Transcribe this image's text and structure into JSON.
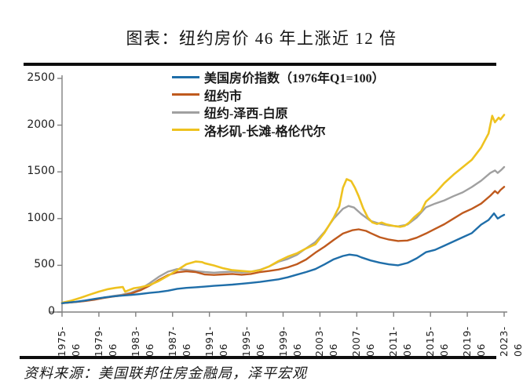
{
  "header": {
    "title": "图表：纽约房价 46 年上涨近 12 倍"
  },
  "source": {
    "text": "资料来源：美国联邦住房金融局，泽平宏观"
  },
  "style": {
    "axis_color": "#808080",
    "tick_label_color": "#1f1f1f",
    "divider_color": "#0d0d0d",
    "background": "#ffffff"
  },
  "chart_data": {
    "type": "line",
    "title": "图表：纽约房价 46 年上涨近 12 倍",
    "legend_position": "top-center",
    "grid": false,
    "xlabel": "",
    "ylabel": "",
    "x_axis": {
      "ticks": [
        {
          "label": "1975-06",
          "year": 1975.5
        },
        {
          "label": "1979-06",
          "year": 1979.5
        },
        {
          "label": "1983-06",
          "year": 1983.5
        },
        {
          "label": "1987-06",
          "year": 1987.5
        },
        {
          "label": "1991-06",
          "year": 1991.5
        },
        {
          "label": "1995-06",
          "year": 1995.5
        },
        {
          "label": "1999-06",
          "year": 1999.5
        },
        {
          "label": "2003-06",
          "year": 2003.5
        },
        {
          "label": "2007-06",
          "year": 2007.5
        },
        {
          "label": "2011-06",
          "year": 2011.5
        },
        {
          "label": "2015-06",
          "year": 2015.5
        },
        {
          "label": "2019-06",
          "year": 2019.5
        },
        {
          "label": "2023-06",
          "year": 2023.5
        }
      ],
      "range": [
        1975.5,
        2023.5
      ]
    },
    "y_axis": {
      "ticks": [
        0,
        500,
        1000,
        1500,
        2000,
        2500
      ],
      "range": [
        0,
        2500
      ]
    },
    "series": [
      {
        "name": "美国房价指数（1976年Q1=100）",
        "color": "#1f6ea9",
        "width": 2.4,
        "points": [
          [
            1975.5,
            95
          ],
          [
            1977,
            110
          ],
          [
            1978,
            123
          ],
          [
            1979,
            140
          ],
          [
            1980,
            155
          ],
          [
            1981,
            167
          ],
          [
            1982,
            175
          ],
          [
            1983,
            183
          ],
          [
            1984,
            193
          ],
          [
            1985,
            205
          ],
          [
            1986,
            215
          ],
          [
            1987,
            228
          ],
          [
            1988,
            248
          ],
          [
            1989,
            258
          ],
          [
            1990,
            265
          ],
          [
            1991,
            272
          ],
          [
            1992,
            280
          ],
          [
            1993,
            287
          ],
          [
            1994,
            294
          ],
          [
            1995,
            303
          ],
          [
            1996,
            312
          ],
          [
            1997,
            322
          ],
          [
            1998,
            336
          ],
          [
            1999,
            350
          ],
          [
            2000,
            372
          ],
          [
            2001,
            400
          ],
          [
            2002,
            428
          ],
          [
            2003,
            460
          ],
          [
            2004,
            510
          ],
          [
            2005,
            565
          ],
          [
            2006,
            600
          ],
          [
            2006.7,
            615
          ],
          [
            2007.5,
            605
          ],
          [
            2008,
            585
          ],
          [
            2009,
            552
          ],
          [
            2010,
            528
          ],
          [
            2011,
            510
          ],
          [
            2012,
            500
          ],
          [
            2013,
            525
          ],
          [
            2014,
            575
          ],
          [
            2015,
            640
          ],
          [
            2016,
            665
          ],
          [
            2017,
            710
          ],
          [
            2018,
            755
          ],
          [
            2019,
            800
          ],
          [
            2020,
            845
          ],
          [
            2021,
            935
          ],
          [
            2021.8,
            985
          ],
          [
            2022.4,
            1055
          ],
          [
            2022.8,
            1000
          ],
          [
            2023.2,
            1025
          ],
          [
            2023.5,
            1040
          ]
        ]
      },
      {
        "name": "纽约市",
        "color": "#bf5a1e",
        "width": 2.4,
        "points": [
          [
            1975.5,
            95
          ],
          [
            1977,
            107
          ],
          [
            1978,
            118
          ],
          [
            1979,
            132
          ],
          [
            1980,
            150
          ],
          [
            1981,
            165
          ],
          [
            1982,
            178
          ],
          [
            1983,
            198
          ],
          [
            1984,
            232
          ],
          [
            1985,
            282
          ],
          [
            1986,
            342
          ],
          [
            1987,
            395
          ],
          [
            1988,
            425
          ],
          [
            1989,
            435
          ],
          [
            1990,
            428
          ],
          [
            1991,
            402
          ],
          [
            1992,
            397
          ],
          [
            1993,
            403
          ],
          [
            1994,
            408
          ],
          [
            1995,
            399
          ],
          [
            1996,
            408
          ],
          [
            1997,
            428
          ],
          [
            1998,
            440
          ],
          [
            1999,
            455
          ],
          [
            2000,
            478
          ],
          [
            2001,
            512
          ],
          [
            2002,
            562
          ],
          [
            2003,
            635
          ],
          [
            2004,
            700
          ],
          [
            2005,
            772
          ],
          [
            2006,
            840
          ],
          [
            2007,
            875
          ],
          [
            2007.7,
            885
          ],
          [
            2008.5,
            868
          ],
          [
            2009,
            845
          ],
          [
            2010,
            800
          ],
          [
            2011,
            775
          ],
          [
            2012,
            760
          ],
          [
            2013,
            765
          ],
          [
            2014,
            795
          ],
          [
            2015,
            840
          ],
          [
            2016,
            890
          ],
          [
            2017,
            940
          ],
          [
            2018,
            1000
          ],
          [
            2019,
            1060
          ],
          [
            2020,
            1105
          ],
          [
            2021,
            1160
          ],
          [
            2022,
            1245
          ],
          [
            2022.5,
            1295
          ],
          [
            2022.8,
            1270
          ],
          [
            2023.1,
            1305
          ],
          [
            2023.5,
            1340
          ]
        ]
      },
      {
        "name": "纽约-泽西-白原",
        "color": "#a0a0a0",
        "width": 2.4,
        "points": [
          [
            1975.5,
            95
          ],
          [
            1977,
            108
          ],
          [
            1978,
            120
          ],
          [
            1979,
            135
          ],
          [
            1980,
            152
          ],
          [
            1981,
            170
          ],
          [
            1982,
            185
          ],
          [
            1983,
            207
          ],
          [
            1984,
            247
          ],
          [
            1985,
            307
          ],
          [
            1986,
            377
          ],
          [
            1987,
            432
          ],
          [
            1988,
            460
          ],
          [
            1989,
            452
          ],
          [
            1990,
            438
          ],
          [
            1991,
            428
          ],
          [
            1992,
            421
          ],
          [
            1993,
            428
          ],
          [
            1994,
            433
          ],
          [
            1995,
            424
          ],
          [
            1996,
            432
          ],
          [
            1997,
            452
          ],
          [
            1998,
            488
          ],
          [
            1999,
            538
          ],
          [
            2000,
            568
          ],
          [
            2001,
            612
          ],
          [
            2002,
            682
          ],
          [
            2003,
            748
          ],
          [
            2004,
            858
          ],
          [
            2005,
            1000
          ],
          [
            2006,
            1105
          ],
          [
            2006.6,
            1135
          ],
          [
            2007.2,
            1118
          ],
          [
            2008,
            1048
          ],
          [
            2009,
            975
          ],
          [
            2010,
            945
          ],
          [
            2011,
            925
          ],
          [
            2012,
            917
          ],
          [
            2013,
            935
          ],
          [
            2014,
            1010
          ],
          [
            2015,
            1120
          ],
          [
            2016,
            1160
          ],
          [
            2017,
            1195
          ],
          [
            2018,
            1240
          ],
          [
            2019,
            1280
          ],
          [
            2020,
            1338
          ],
          [
            2021,
            1405
          ],
          [
            2022,
            1488
          ],
          [
            2022.5,
            1515
          ],
          [
            2022.8,
            1488
          ],
          [
            2023.2,
            1522
          ],
          [
            2023.5,
            1552
          ]
        ]
      },
      {
        "name": "洛杉矶-长滩-格伦代尔",
        "color": "#eec21f",
        "width": 2.6,
        "points": [
          [
            1975.5,
            100
          ],
          [
            1976.5,
            122
          ],
          [
            1977.5,
            152
          ],
          [
            1978.5,
            186
          ],
          [
            1979.5,
            218
          ],
          [
            1980.5,
            245
          ],
          [
            1981.3,
            258
          ],
          [
            1982.1,
            268
          ],
          [
            1982.35,
            218
          ],
          [
            1982.7,
            232
          ],
          [
            1983.3,
            255
          ],
          [
            1984,
            265
          ],
          [
            1985,
            288
          ],
          [
            1986,
            332
          ],
          [
            1987,
            388
          ],
          [
            1988,
            448
          ],
          [
            1989,
            512
          ],
          [
            1990,
            540
          ],
          [
            1990.7,
            534
          ],
          [
            1991,
            522
          ],
          [
            1992,
            498
          ],
          [
            1993,
            468
          ],
          [
            1994,
            448
          ],
          [
            1995,
            440
          ],
          [
            1996,
            432
          ],
          [
            1997,
            448
          ],
          [
            1998,
            488
          ],
          [
            1999,
            545
          ],
          [
            2000,
            592
          ],
          [
            2001,
            628
          ],
          [
            2002,
            680
          ],
          [
            2003,
            725
          ],
          [
            2004,
            850
          ],
          [
            2005,
            1010
          ],
          [
            2005.6,
            1130
          ],
          [
            2006,
            1330
          ],
          [
            2006.4,
            1422
          ],
          [
            2006.9,
            1400
          ],
          [
            2007.3,
            1330
          ],
          [
            2007.7,
            1240
          ],
          [
            2008.2,
            1110
          ],
          [
            2008.7,
            1010
          ],
          [
            2009.2,
            958
          ],
          [
            2009.7,
            942
          ],
          [
            2010.2,
            958
          ],
          [
            2010.7,
            938
          ],
          [
            2011.2,
            928
          ],
          [
            2011.7,
            918
          ],
          [
            2012.2,
            912
          ],
          [
            2012.7,
            922
          ],
          [
            2013.2,
            958
          ],
          [
            2013.7,
            1012
          ],
          [
            2014.5,
            1080
          ],
          [
            2015,
            1180
          ],
          [
            2016,
            1270
          ],
          [
            2017,
            1380
          ],
          [
            2018,
            1470
          ],
          [
            2019,
            1550
          ],
          [
            2020,
            1630
          ],
          [
            2021,
            1760
          ],
          [
            2021.8,
            1910
          ],
          [
            2022.2,
            2100
          ],
          [
            2022.5,
            2030
          ],
          [
            2022.9,
            2080
          ],
          [
            2023.1,
            2060
          ],
          [
            2023.5,
            2110
          ]
        ]
      }
    ]
  }
}
